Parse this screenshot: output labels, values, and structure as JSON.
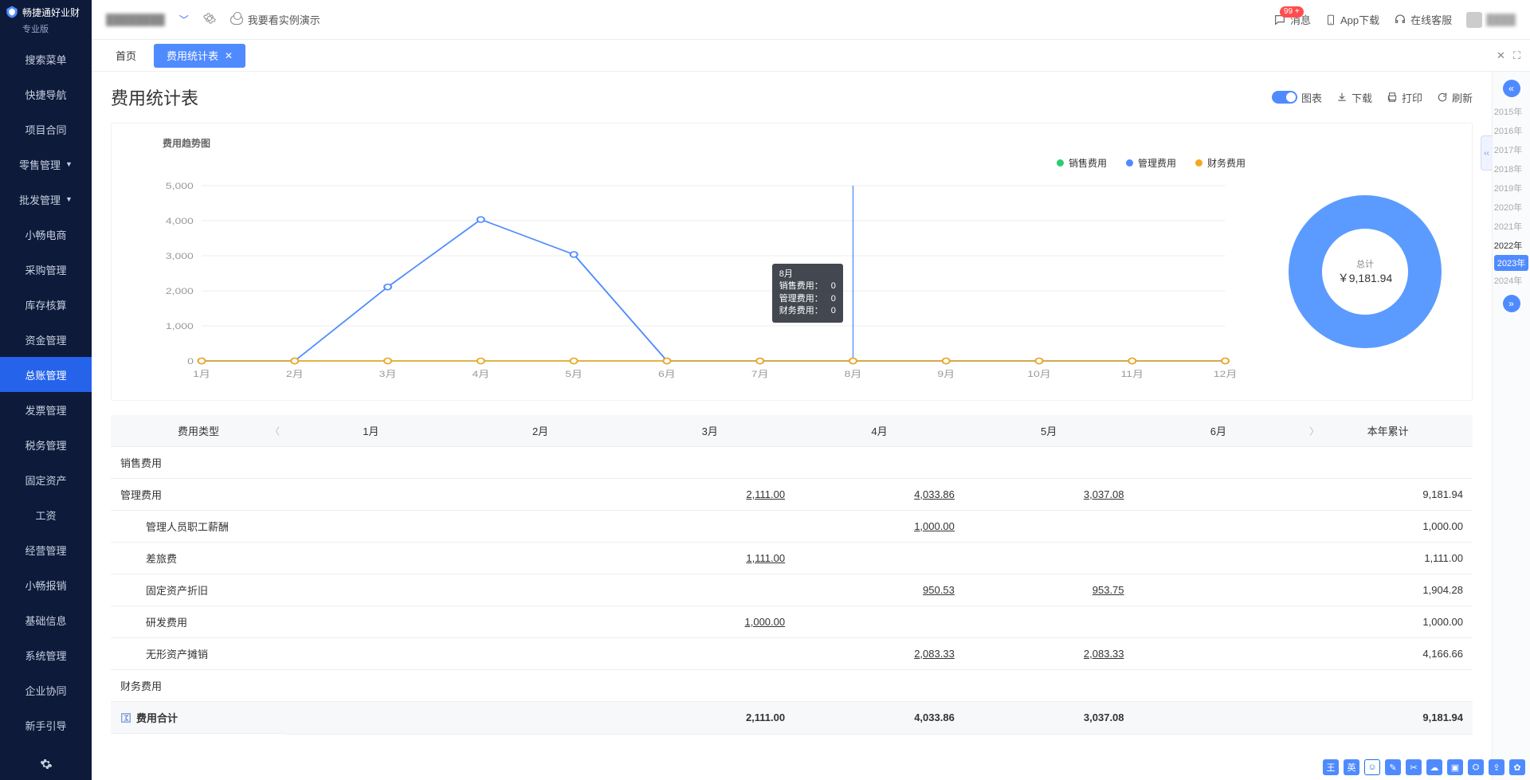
{
  "brand": {
    "name": "畅捷通好业财",
    "edition": "专业版"
  },
  "topbar": {
    "org": "████████",
    "demo": "我要看实例演示",
    "msg": "消息",
    "msg_badge": "99 +",
    "app": "App下载",
    "cs": "在线客服",
    "user": "████"
  },
  "tabs": {
    "home": "首页",
    "active": "费用统计表"
  },
  "nav": [
    {
      "label": "搜索菜单"
    },
    {
      "label": "快捷导航"
    },
    {
      "label": "项目合同"
    },
    {
      "label": "零售管理",
      "expandable": true
    },
    {
      "label": "批发管理",
      "expandable": true
    },
    {
      "label": "小畅电商"
    },
    {
      "label": "采购管理"
    },
    {
      "label": "库存核算"
    },
    {
      "label": "资金管理"
    },
    {
      "label": "总账管理",
      "active": true
    },
    {
      "label": "发票管理"
    },
    {
      "label": "税务管理"
    },
    {
      "label": "固定资产"
    },
    {
      "label": "工资"
    },
    {
      "label": "经营管理"
    },
    {
      "label": "小畅报销"
    },
    {
      "label": "基础信息"
    },
    {
      "label": "系统管理"
    },
    {
      "label": "企业协同"
    },
    {
      "label": "新手引导"
    }
  ],
  "page": {
    "title": "费用统计表",
    "tools": {
      "chart": "图表",
      "download": "下载",
      "print": "打印",
      "refresh": "刷新"
    }
  },
  "years": {
    "list": [
      "2015年",
      "2016年",
      "2017年",
      "2018年",
      "2019年",
      "2020年",
      "2021年",
      "2022年",
      "2023年",
      "2024年"
    ],
    "current": "2022年",
    "selected": "2023年"
  },
  "chart": {
    "subtitle": "费用趋势图",
    "legend": [
      {
        "label": "销售费用",
        "color": "#2ecc71"
      },
      {
        "label": "管理费用",
        "color": "#4f8bff"
      },
      {
        "label": "财务费用",
        "color": "#f5a623"
      }
    ],
    "xticks": [
      "1月",
      "2月",
      "3月",
      "4月",
      "5月",
      "6月",
      "7月",
      "8月",
      "9月",
      "10月",
      "11月",
      "12月"
    ],
    "yticks": [
      "0",
      "1,000",
      "2,000",
      "3,000",
      "4,000",
      "5,000"
    ],
    "ymax": 5000,
    "series_points": [
      [
        0,
        0,
        0,
        0,
        0,
        0,
        0,
        0,
        0,
        0,
        0,
        0
      ],
      [
        0,
        0,
        2111,
        4034,
        3037,
        0,
        0,
        0,
        0,
        0,
        0,
        0
      ],
      [
        0,
        0,
        0,
        0,
        0,
        0,
        0,
        0,
        0,
        0,
        0,
        0
      ]
    ],
    "marker_x_index": 7,
    "tooltip": {
      "title": "8月",
      "rows": [
        [
          "销售费用",
          "0"
        ],
        [
          "管理费用",
          "0"
        ],
        [
          "财务费用",
          "0"
        ]
      ]
    },
    "donut": {
      "center_label": "总计",
      "center_value": "￥9,181.94",
      "color": "#5b9bff"
    },
    "grid_color": "#eeeeee",
    "axis_color": "#999"
  },
  "table": {
    "columns": [
      "费用类型",
      "1月",
      "2月",
      "3月",
      "4月",
      "5月",
      "6月",
      "本年累计"
    ],
    "rows": [
      {
        "label": "销售费用",
        "cells": [
          "",
          "",
          "",
          "",
          "",
          "",
          ""
        ]
      },
      {
        "label": "管理费用",
        "cells": [
          "",
          "",
          "2,111.00",
          "4,033.86",
          "3,037.08",
          "",
          "9,181.94"
        ],
        "uflags": [
          false,
          false,
          true,
          true,
          true,
          false,
          false
        ]
      },
      {
        "label": "管理人员职工薪酬",
        "indent": true,
        "cells": [
          "",
          "",
          "",
          "1,000.00",
          "",
          "",
          "1,000.00"
        ],
        "uflags": [
          false,
          false,
          false,
          true,
          false,
          false,
          false
        ]
      },
      {
        "label": "差旅费",
        "indent": true,
        "cells": [
          "",
          "",
          "1,111.00",
          "",
          "",
          "",
          "1,111.00"
        ],
        "uflags": [
          false,
          false,
          true,
          false,
          false,
          false,
          false
        ]
      },
      {
        "label": "固定资产折旧",
        "indent": true,
        "cells": [
          "",
          "",
          "",
          "950.53",
          "953.75",
          "",
          "1,904.28"
        ],
        "uflags": [
          false,
          false,
          false,
          true,
          true,
          false,
          false
        ]
      },
      {
        "label": "研发费用",
        "indent": true,
        "cells": [
          "",
          "",
          "1,000.00",
          "",
          "",
          "",
          "1,000.00"
        ],
        "uflags": [
          false,
          false,
          true,
          false,
          false,
          false,
          false
        ]
      },
      {
        "label": "无形资产摊销",
        "indent": true,
        "cells": [
          "",
          "",
          "",
          "2,083.33",
          "2,083.33",
          "",
          "4,166.66"
        ],
        "uflags": [
          false,
          false,
          false,
          true,
          true,
          false,
          false
        ]
      },
      {
        "label": "财务费用",
        "cells": [
          "",
          "",
          "",
          "",
          "",
          "",
          ""
        ]
      }
    ],
    "total_row": {
      "label": "费用合计",
      "cells": [
        "",
        "",
        "2,111.00",
        "4,033.86",
        "3,037.08",
        "",
        "9,181.94"
      ]
    }
  },
  "tray": [
    "王",
    "英",
    "☺",
    "✎",
    "✂",
    "☁",
    "▣",
    "⛭",
    "⇪",
    "✿"
  ]
}
